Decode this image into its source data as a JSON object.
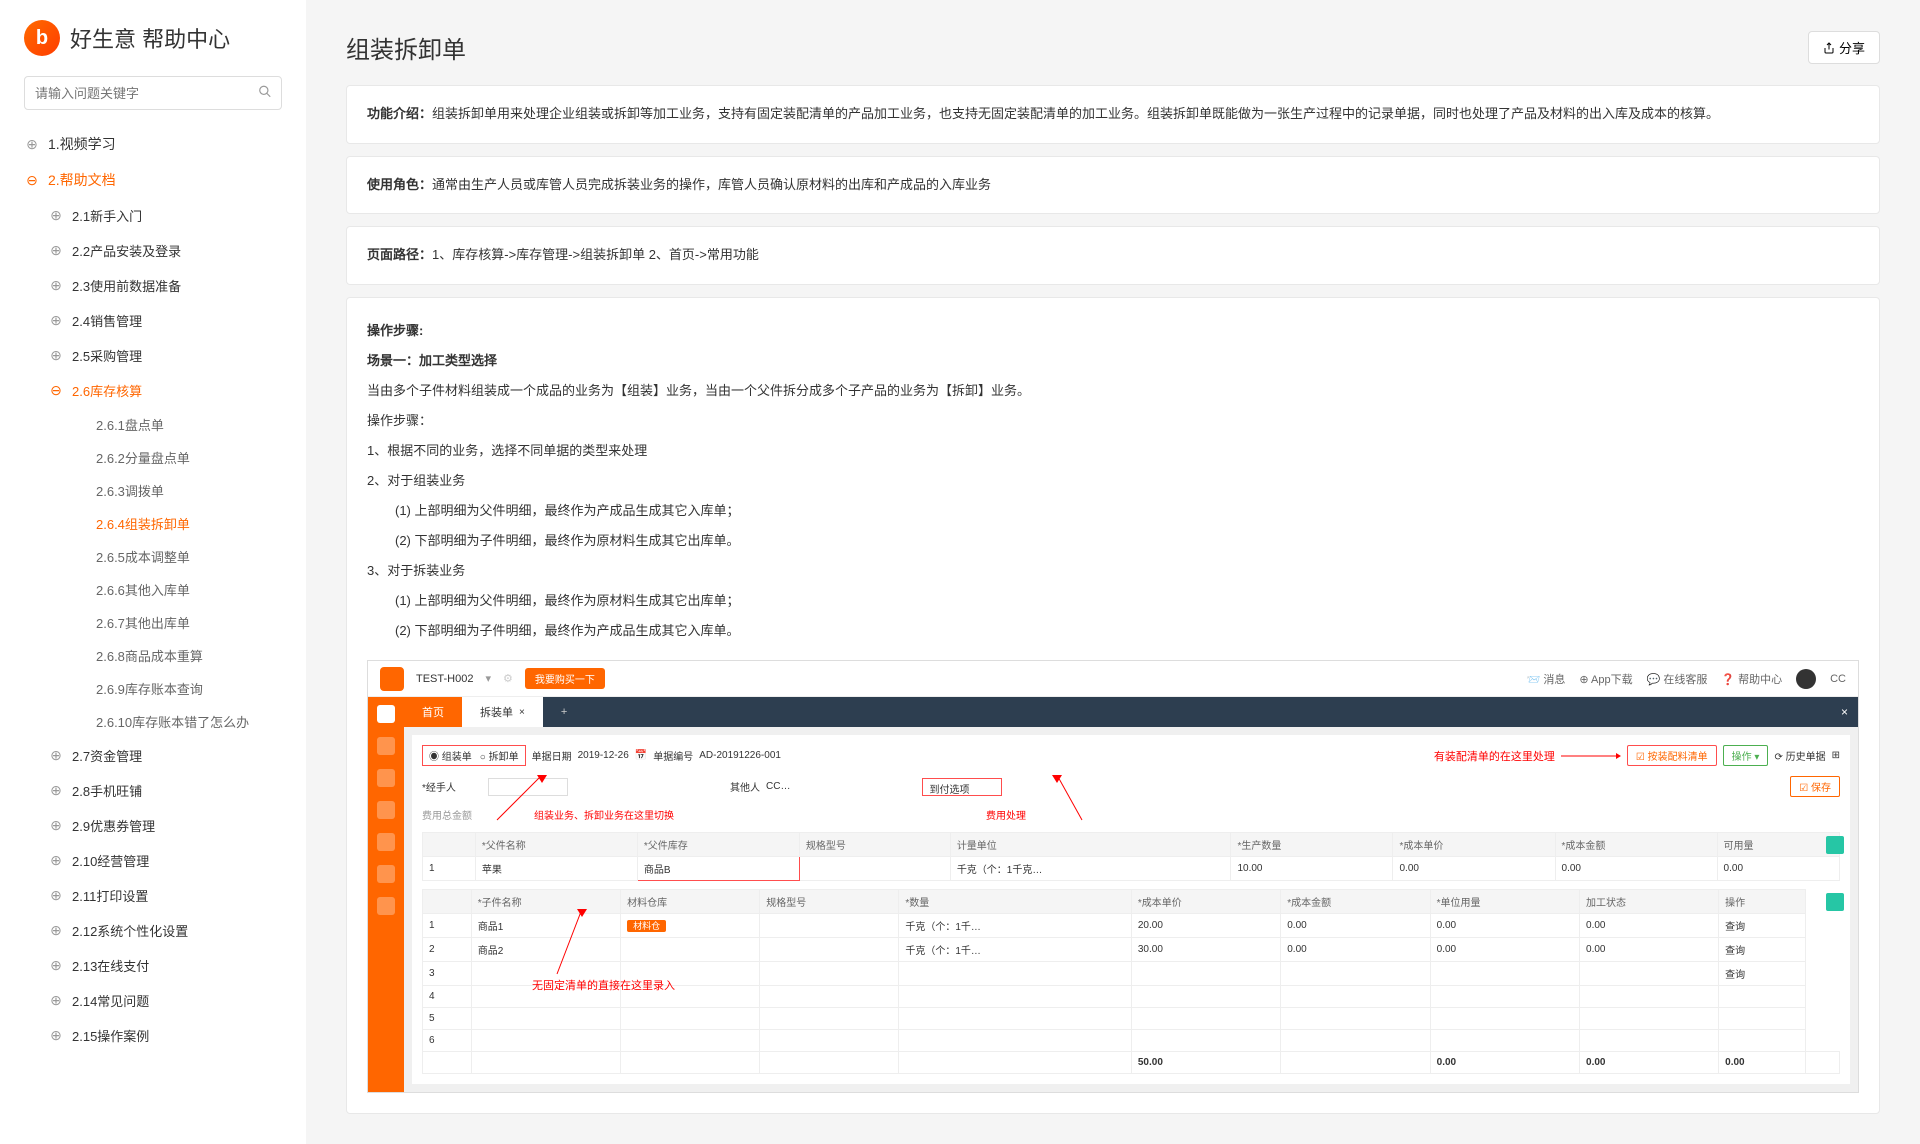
{
  "header": {
    "logo_letter": "b",
    "site_title": "好生意 帮助中心",
    "search_placeholder": "请输入问题关键字",
    "share_label": "分享"
  },
  "nav": {
    "top": [
      {
        "label": "1.视频学习",
        "icon": "plus"
      }
    ],
    "expanded": {
      "label": "2.帮助文档",
      "children": [
        {
          "label": "2.1新手入门",
          "icon": "plus"
        },
        {
          "label": "2.2产品安装及登录",
          "icon": "plus"
        },
        {
          "label": "2.3使用前数据准备",
          "icon": "plus"
        },
        {
          "label": "2.4销售管理",
          "icon": "plus"
        },
        {
          "label": "2.5采购管理",
          "icon": "plus"
        }
      ],
      "expanded_child": {
        "label": "2.6库存核算",
        "leaves": [
          "2.6.1盘点单",
          "2.6.2分量盘点单",
          "2.6.3调拨单",
          "2.6.4组装拆卸单",
          "2.6.5成本调整单",
          "2.6.6其他入库单",
          "2.6.7其他出库单",
          "2.6.8商品成本重算",
          "2.6.9库存账本查询",
          "2.6.10库存账本错了怎么办"
        ],
        "active_index": 3
      },
      "after": [
        {
          "label": "2.7资金管理",
          "icon": "plus"
        },
        {
          "label": "2.8手机旺铺",
          "icon": "plus"
        },
        {
          "label": "2.9优惠券管理",
          "icon": "plus"
        },
        {
          "label": "2.10经营管理",
          "icon": "plus"
        },
        {
          "label": "2.11打印设置",
          "icon": "plus"
        },
        {
          "label": "2.12系统个性化设置",
          "icon": "plus"
        },
        {
          "label": "2.13在线支付",
          "icon": "plus"
        },
        {
          "label": "2.14常见问题",
          "icon": "plus"
        },
        {
          "label": "2.15操作案例",
          "icon": "plus"
        }
      ]
    }
  },
  "page": {
    "title": "组装拆卸单",
    "intro_label": "功能介绍：",
    "intro_text": "组装拆卸单用来处理企业组装或拆卸等加工业务，支持有固定装配清单的产品加工业务，也支持无固定装配清单的加工业务。组装拆卸单既能做为一张生产过程中的记录单据，同时也处理了产品及材料的出入库及成本的核算。",
    "role_label": "使用角色：",
    "role_text": "通常由生产人员或库管人员完成拆装业务的操作，库管人员确认原材料的出库和产成品的入库业务",
    "path_label": "页面路径：",
    "path_text": "1、库存核算->库存管理->组装拆卸单 2、首页->常用功能",
    "steps_label": "操作步骤:",
    "scene_label": "场景一：加工类型选择",
    "scene_desc": "当由多个子件材料组装成一个成品的业务为【组装】业务，当由一个父件拆分成多个子产品的业务为【拆卸】业务。",
    "steps_title": "操作步骤：",
    "step1": "1、根据不同的业务，选择不同单据的类型来处理",
    "step2": "2、对于组装业务",
    "step2_1": "(1) 上部明细为父件明细，最终作为产成品生成其它入库单；",
    "step2_2": "(2) 下部明细为子件明细，最终作为原材料生成其它出库单。",
    "step3": "3、对于拆装业务",
    "step3_1": "(1) 上部明细为父件明细，最终作为原材料生成其它出库单；",
    "step3_2": "(2) 下部明细为子件明细，最终作为产成品生成其它入库单。"
  },
  "screenshot": {
    "topbar": {
      "company": "TEST-H002",
      "trial_btn": "我要购买一下",
      "menu": [
        "消息",
        "App下载",
        "在线客服",
        "帮助中心"
      ],
      "user": "CC"
    },
    "tabs": {
      "home": "首页",
      "active": "拆装单",
      "plus": "+"
    },
    "form": {
      "radio1": "组装单",
      "radio2": "拆卸单",
      "date_label": "单据日期",
      "date_value": "2019-12-26",
      "code_label": "单据编号",
      "code_value": "AD-20191226-001",
      "annotation_top": "有装配清单的在这里处理",
      "btn_material": "按装配料清单",
      "btn_op": "操作",
      "btn_history": "历史单据",
      "handler_label": "经手人",
      "remark_label": "其他人",
      "cost_label": "到付选项",
      "save_btn": "保存",
      "total_label": "费用总金额",
      "annotation_mid_left": "组装业务、拆卸业务在这里切换",
      "annotation_mid_right": "费用处理"
    },
    "table1": {
      "headers": [
        "",
        "*父件名称",
        "*父件库存",
        "规格型号",
        "计量单位",
        "*生产数量",
        "*成本单价",
        "*成本金额",
        "可用量"
      ],
      "row": [
        "1",
        "苹果",
        "商品B",
        "",
        "千克（个：1千克…",
        "10.00",
        "0.00",
        "0.00",
        "0.00"
      ]
    },
    "table2": {
      "headers": [
        "",
        "*子件名称",
        "材料仓库",
        "规格型号",
        "*数量",
        "*成本单价",
        "*成本金额",
        "*单位用量",
        "加工状态",
        "操作"
      ],
      "rows": [
        [
          "1",
          "商品1",
          "",
          "",
          "千克（个：1千…",
          "20.00",
          "0.00",
          "0.00",
          "0.00",
          "查询"
        ],
        [
          "2",
          "商品2",
          "",
          "",
          "千克（个：1千…",
          "30.00",
          "0.00",
          "0.00",
          "0.00",
          "查询"
        ],
        [
          "3",
          "",
          "",
          "",
          "",
          "",
          "",
          "",
          "",
          "查询"
        ],
        [
          "4",
          "",
          "",
          "",
          "",
          "",
          "",
          "",
          "",
          ""
        ],
        [
          "5",
          "",
          "",
          "",
          "",
          "",
          "",
          "",
          "",
          ""
        ],
        [
          "6",
          "",
          "",
          "",
          "",
          "",
          "",
          "",
          "",
          ""
        ]
      ],
      "footer": [
        "",
        "",
        "",
        "",
        "",
        "50.00",
        "",
        "0.00",
        "0.00",
        "0.00",
        ""
      ]
    },
    "annotation_bottom": "无固定清单的直接在这里录入",
    "colors": {
      "primary": "#ff6600",
      "red": "#ff0000",
      "green": "#4caf50",
      "dark_nav": "#2d3e50"
    }
  }
}
